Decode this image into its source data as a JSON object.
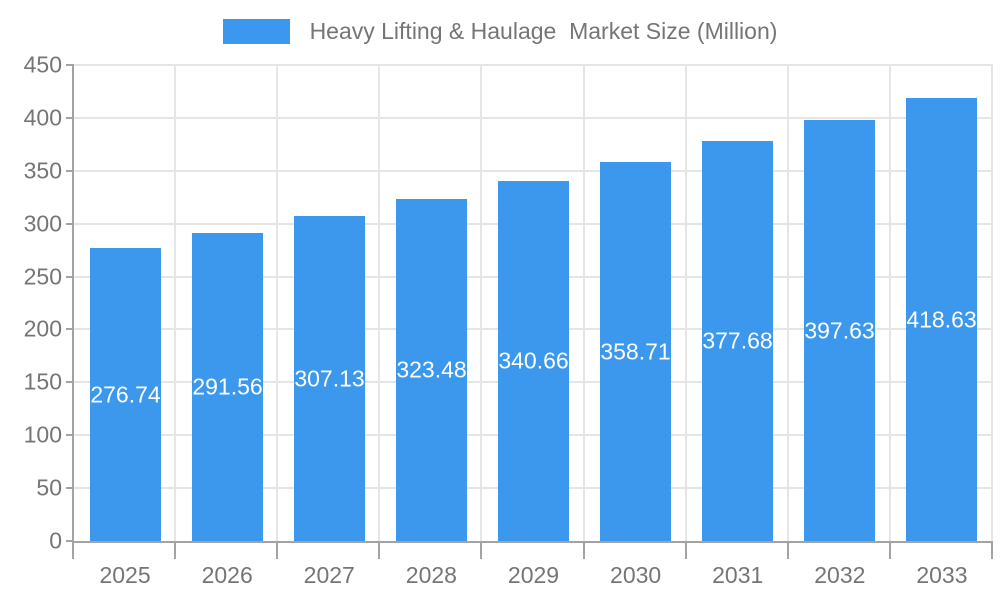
{
  "chart_data": {
    "type": "bar",
    "title": "Heavy Lifting & Haulage  Market Size (Million)",
    "categories": [
      "2025",
      "2026",
      "2027",
      "2028",
      "2029",
      "2030",
      "2031",
      "2032",
      "2033"
    ],
    "values": [
      276.74,
      291.56,
      307.13,
      323.48,
      340.66,
      358.71,
      377.68,
      397.63,
      418.63
    ],
    "series": [
      {
        "name": "Heavy Lifting & Haulage  Market Size (Million)",
        "values": [
          276.74,
          291.56,
          307.13,
          323.48,
          340.66,
          358.71,
          377.68,
          397.63,
          418.63
        ]
      }
    ],
    "xlabel": "",
    "ylabel": "",
    "ylim": [
      0,
      450
    ],
    "ytick_step": 50,
    "ytick_labels": [
      "0",
      "50",
      "100",
      "150",
      "200",
      "250",
      "300",
      "350",
      "400",
      "450"
    ],
    "grid": true,
    "legend_position": "top",
    "value_labels": "inside-center"
  },
  "legend": {
    "label": "Heavy Lifting & Haulage  Market Size (Million)"
  },
  "colors": {
    "bar": "#3b98ec",
    "bar_label": "#ffffff",
    "axis_line": "#a3a3a3",
    "gridline": "#e5e5e5",
    "axis_text": "#757575",
    "background": "#ffffff"
  }
}
